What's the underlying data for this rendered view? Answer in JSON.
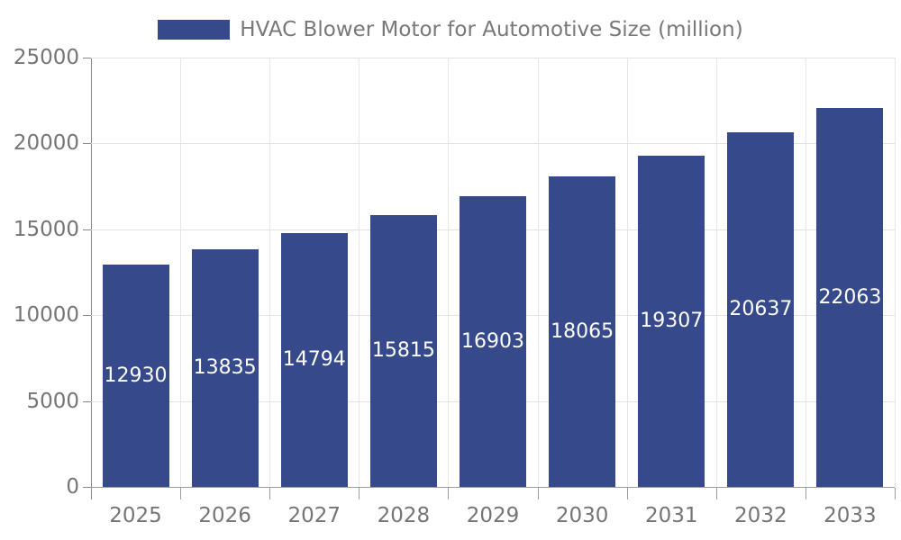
{
  "legend": {
    "label": "HVAC Blower Motor for Automotive Size (million)"
  },
  "chart_data": {
    "type": "bar",
    "title": "HVAC Blower Motor for Automotive Size (million)",
    "categories": [
      "2025",
      "2026",
      "2027",
      "2028",
      "2029",
      "2030",
      "2031",
      "2032",
      "2033"
    ],
    "values": [
      12930,
      13835,
      14794,
      15815,
      16903,
      18065,
      19307,
      20637,
      22063
    ],
    "series_name": "HVAC Blower Motor for Automotive Size (million)",
    "xlabel": "",
    "ylabel": "",
    "ylim": [
      0,
      25000
    ],
    "yticks": [
      0,
      5000,
      10000,
      15000,
      20000,
      25000
    ],
    "grid": true,
    "legend_position": "top-center",
    "value_labels": "inside-center",
    "colors": {
      "bar": "#36498a",
      "value_label": "#ffffff",
      "axis_text": "#757575",
      "legend_text": "#787878",
      "gridline": "#e2e2e8",
      "axis_line": "#8a8a8a"
    }
  }
}
